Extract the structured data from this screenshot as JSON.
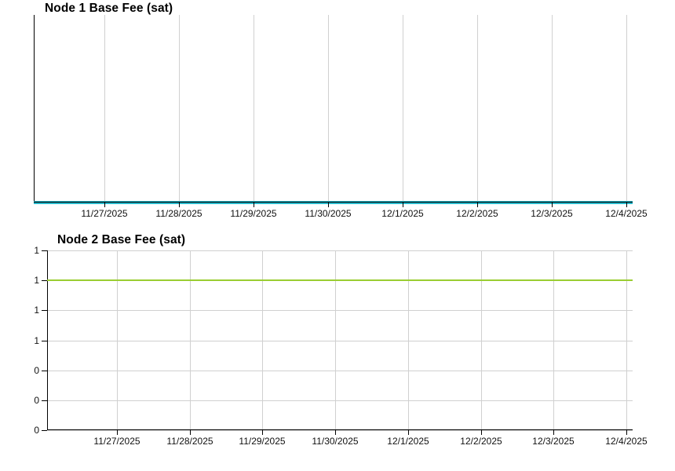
{
  "page": {
    "background": "#ffffff"
  },
  "style": {
    "grid_color": "#d0d0d0",
    "axis_color": "#000000",
    "tick_label_color": "#111111",
    "title_color": "#000000",
    "node1_line_color": "#25b7c9",
    "node2_line_color": "#9acd32"
  },
  "chart_data": [
    {
      "type": "line",
      "title": "Node 1 Base Fee (sat)",
      "xlabel": "",
      "ylabel": "",
      "grid": true,
      "legend": "none",
      "x_tick_labels": [
        "11/27/2025",
        "11/28/2025",
        "11/29/2025",
        "11/30/2025",
        "12/1/2025",
        "12/2/2025",
        "12/3/2025",
        "12/4/2025"
      ],
      "y_tick_labels": [],
      "series": [
        {
          "name": "Node 1 Base Fee",
          "color": "#25b7c9",
          "constant_value": 0,
          "x": [
            "11/27/2025",
            "11/28/2025",
            "11/29/2025",
            "11/30/2025",
            "12/1/2025",
            "12/2/2025",
            "12/3/2025",
            "12/4/2025"
          ],
          "values": [
            0,
            0,
            0,
            0,
            0,
            0,
            0,
            0
          ]
        }
      ],
      "annotation": "flat line lying on the x-axis across the full date range"
    },
    {
      "type": "line",
      "title": "Node 2 Base Fee (sat)",
      "xlabel": "",
      "ylabel": "",
      "grid": true,
      "legend": "none",
      "x_tick_labels": [
        "11/27/2025",
        "11/28/2025",
        "11/29/2025",
        "11/30/2025",
        "12/1/2025",
        "12/2/2025",
        "12/3/2025",
        "12/4/2025"
      ],
      "y_tick_labels": [
        "1",
        "1",
        "1",
        "1",
        "0",
        "0",
        "0"
      ],
      "y_tick_values_estimated": [
        1.2,
        1.0,
        0.8,
        0.6,
        0.4,
        0.2,
        0.0
      ],
      "ylim": [
        0,
        1.2
      ],
      "series": [
        {
          "name": "Node 2 Base Fee",
          "color": "#9acd32",
          "constant_value": 1,
          "x": [
            "11/27/2025",
            "11/28/2025",
            "11/29/2025",
            "11/30/2025",
            "12/1/2025",
            "12/2/2025",
            "12/3/2025",
            "12/4/2025"
          ],
          "values": [
            1,
            1,
            1,
            1,
            1,
            1,
            1,
            1
          ]
        }
      ],
      "annotation": "flat line at y = 1 across the full date range"
    }
  ]
}
